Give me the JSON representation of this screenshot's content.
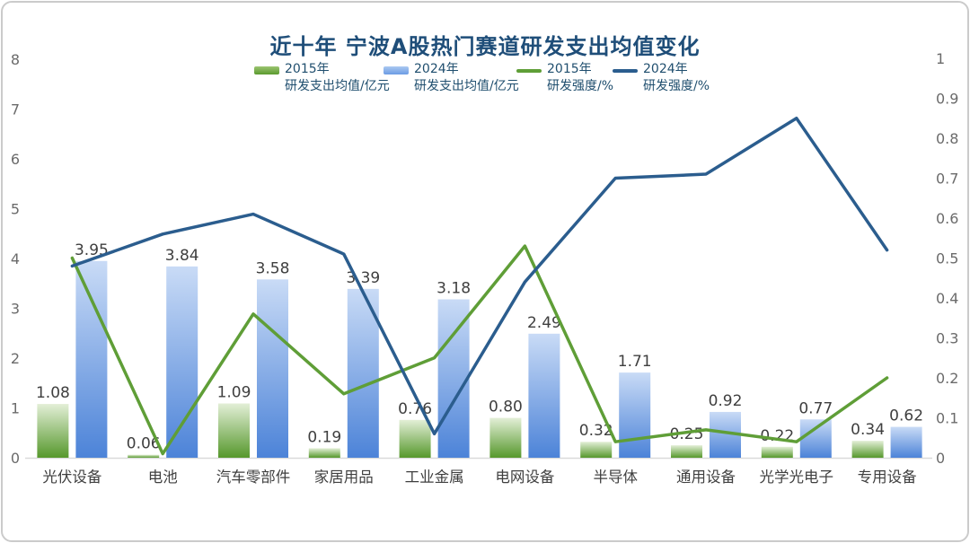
{
  "title": "近十年 宁波A股热门赛道研发支出均值变化",
  "legend": {
    "items": [
      {
        "line1": "2015年",
        "line2": "研发支出均值/亿元",
        "swatch": "bar-green"
      },
      {
        "line1": "2024年",
        "line2": "研发支出均值/亿元",
        "swatch": "bar-blue"
      },
      {
        "line1": "2015年",
        "line2": "研发强度/%",
        "swatch": "line-green"
      },
      {
        "line1": "2024年",
        "line2": "研发强度/%",
        "swatch": "line-darkblue"
      }
    ]
  },
  "colors": {
    "title_text": "#1f4e79",
    "legend_text": "#1f4e6e",
    "axis_text": "#6b6b6b",
    "bar_label_text": "#3f3f3f",
    "category_text": "#3f3f3f",
    "baseline": "#d9d9d9",
    "green_bar_top": "#e3efd7",
    "green_bar_bottom": "#56982c",
    "blue_bar_top": "#c9dbf6",
    "blue_bar_bottom": "#4c83d8",
    "green_line": "#5f9e37",
    "blue_line": "#2b5d8e"
  },
  "chart_data": {
    "type": "bar+line combo (dual axis)",
    "title": "近十年 宁波A股热门赛道研发支出均值变化",
    "categories": [
      "光伏设备",
      "电池",
      "汽车零部件",
      "家居用品",
      "工业金属",
      "电网设备",
      "半导体",
      "通用设备",
      "光学光电子",
      "专用设备"
    ],
    "bar_series": [
      {
        "name": "2015年 研发支出均值/亿元",
        "axis": "left",
        "values": [
          1.08,
          0.06,
          1.09,
          0.19,
          0.76,
          0.8,
          0.32,
          0.25,
          0.22,
          0.34
        ]
      },
      {
        "name": "2024年 研发支出均值/亿元",
        "axis": "left",
        "values": [
          3.95,
          3.84,
          3.58,
          3.39,
          3.18,
          2.49,
          1.71,
          0.92,
          0.77,
          0.62
        ]
      }
    ],
    "line_series": [
      {
        "name": "2015年 研发强度/%",
        "axis": "right",
        "values": [
          0.5,
          0.01,
          0.36,
          0.16,
          0.25,
          0.53,
          0.04,
          0.07,
          0.04,
          0.2
        ]
      },
      {
        "name": "2024年 研发强度/%",
        "axis": "right",
        "values": [
          0.48,
          0.56,
          0.61,
          0.51,
          0.06,
          0.44,
          0.7,
          0.71,
          0.85,
          0.52
        ]
      }
    ],
    "left_axis": {
      "label": "研发支出均值/亿元",
      "range": [
        0,
        8
      ],
      "ticks": [
        0,
        1,
        2,
        3,
        4,
        5,
        6,
        7,
        8
      ]
    },
    "right_axis": {
      "label": "研发强度/%",
      "range": [
        0,
        1
      ],
      "ticks": [
        0,
        0.1,
        0.2,
        0.3,
        0.4,
        0.5,
        0.6,
        0.7,
        0.8,
        0.9,
        1
      ]
    },
    "grid": false,
    "legend_position": "top",
    "bar_labels_visible": true
  }
}
